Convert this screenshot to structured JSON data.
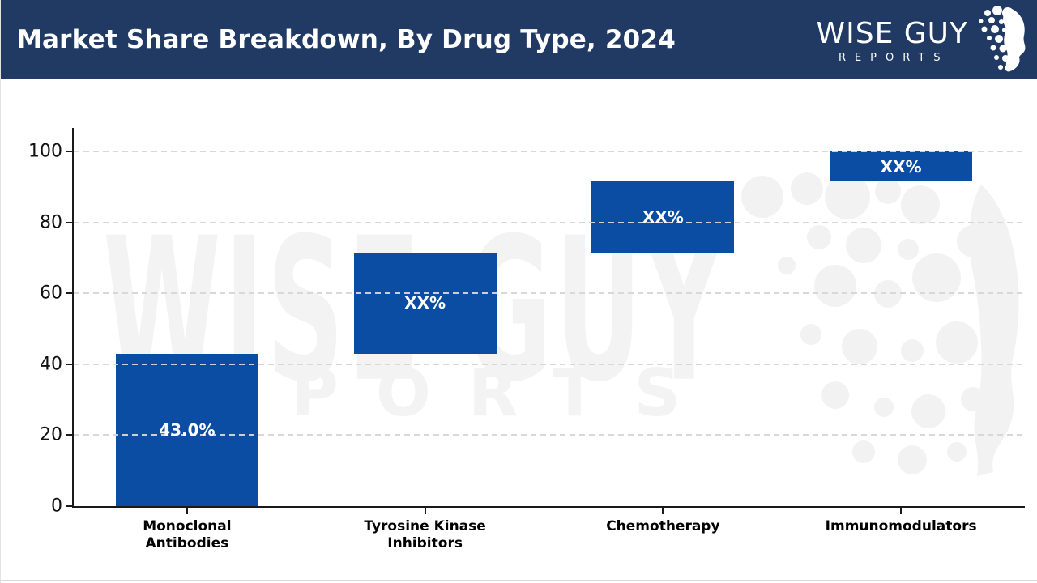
{
  "header": {
    "title": "Market Share Breakdown, By Drug Type, 2024",
    "logo": {
      "name": "WISE GUY",
      "sub": "REPORTS"
    }
  },
  "watermark": {
    "name": "WISE GUY",
    "sub": "REPORTS"
  },
  "chart_data": {
    "type": "bar",
    "subtype": "waterfall",
    "title": "Market Share Breakdown, By Drug Type, 2024",
    "categories": [
      "Monoclonal\nAntibodies",
      "Tyrosine Kinase\nInhibitors",
      "Chemotherapy",
      "Immunomodulators"
    ],
    "segments": [
      {
        "category": "Monoclonal Antibodies",
        "label": "43.0%",
        "start": 0,
        "end": 43.0
      },
      {
        "category": "Tyrosine Kinase Inhibitors",
        "label": "XX%",
        "start": 43.0,
        "end": 71.5
      },
      {
        "category": "Chemotherapy",
        "label": "XX%",
        "start": 71.5,
        "end": 91.5
      },
      {
        "category": "Immunomodulators",
        "label": "XX%",
        "start": 91.5,
        "end": 100.0
      }
    ],
    "yticks": [
      0,
      20,
      40,
      60,
      80,
      100
    ],
    "ylim": [
      0,
      105
    ],
    "xlabel": "",
    "ylabel": "",
    "grid": "dashed-horizontal, drawn over bars",
    "legend": "none",
    "bar_color": "#0b4da2",
    "bar_label_color": "#ffffff"
  },
  "colors": {
    "header_bg": "#213a64",
    "bar": "#0b4da2",
    "grid": "#d6d6d6",
    "axis": "#1a1a1a",
    "watermark": "#f3f3f3",
    "hairline": "#d9d9d9"
  }
}
